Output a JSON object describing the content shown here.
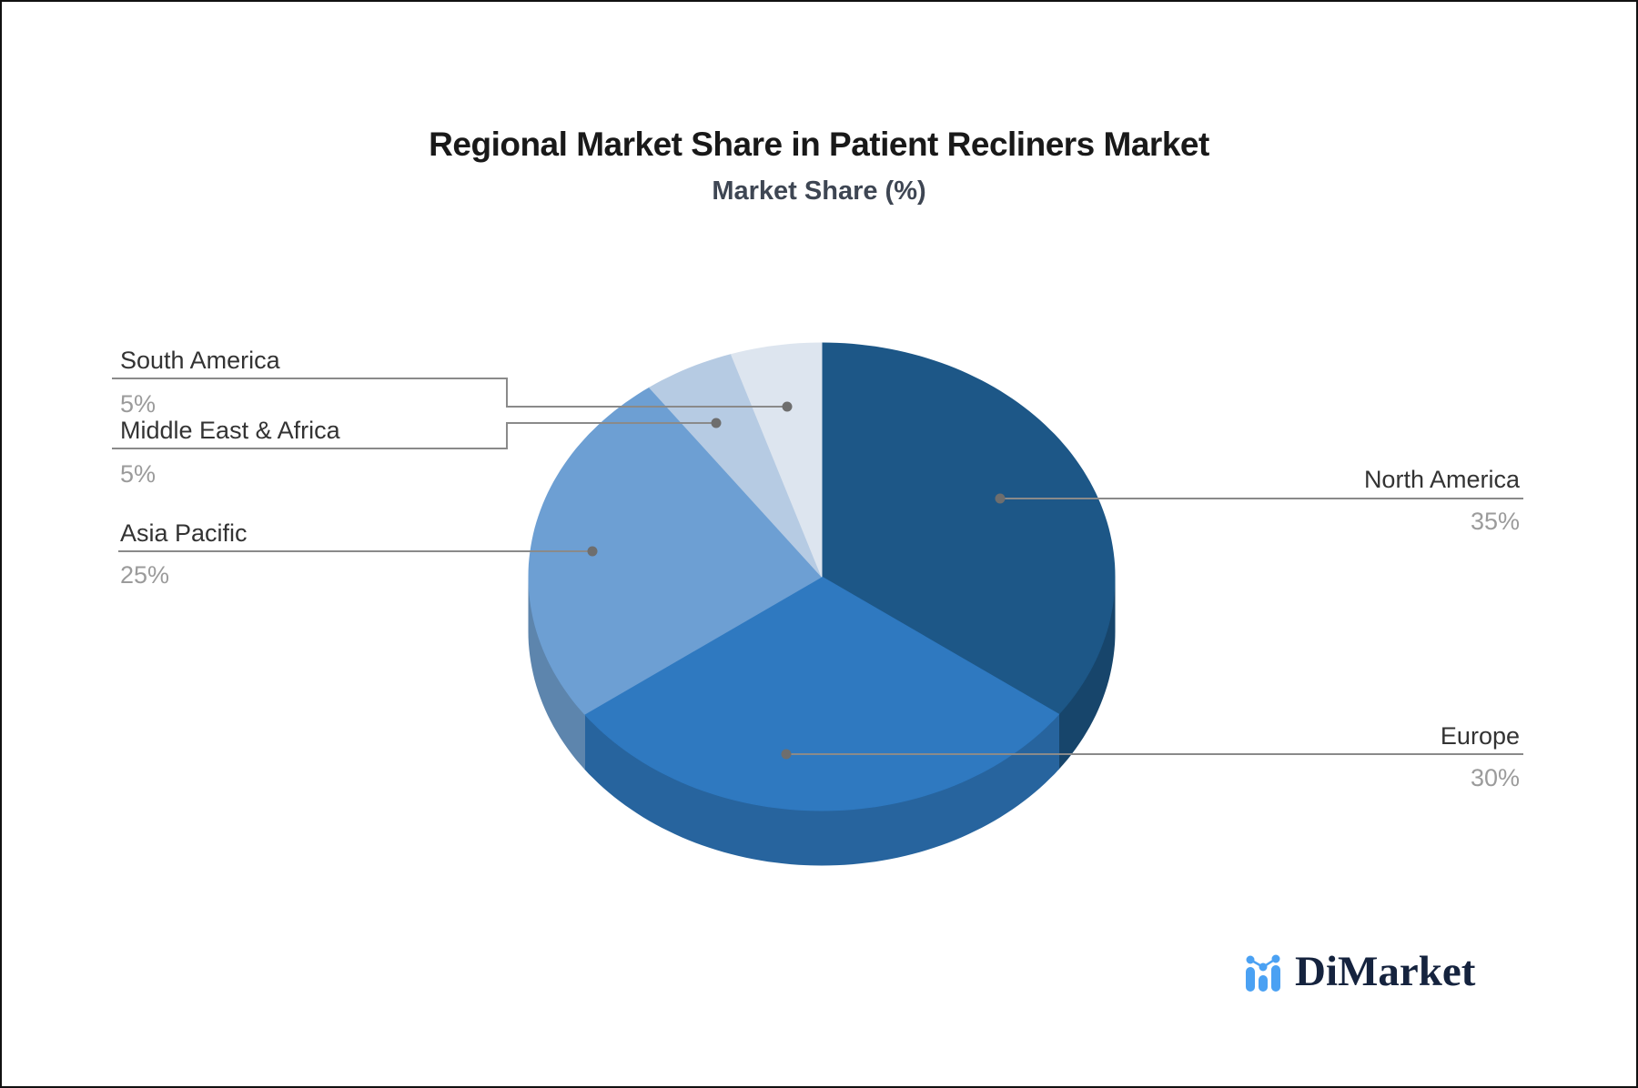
{
  "chart_data": {
    "type": "pie",
    "effect": "3d",
    "title": "Regional Market Share in Patient Recliners Market",
    "subtitle": "Market Share (%)",
    "unit": "%",
    "start_angle_deg": -90,
    "direction": "clockwise",
    "legend_position": "callout-labels",
    "slices": [
      {
        "name": "North America",
        "value": 35,
        "label": "35%",
        "color": "#1d5787",
        "side_color": "#17456b"
      },
      {
        "name": "Europe",
        "value": 30,
        "label": "30%",
        "color": "#2f79c0",
        "side_color": "#27649e"
      },
      {
        "name": "Asia Pacific",
        "value": 25,
        "label": "25%",
        "color": "#6d9fd3",
        "side_color": "#5d85ad"
      },
      {
        "name": "Middle East & Africa",
        "value": 5,
        "label": "5%",
        "color": "#b6cbe3",
        "side_color": "#93a9c2"
      },
      {
        "name": "South America",
        "value": 5,
        "label": "5%",
        "color": "#dde5ef",
        "side_color": "#b8c2d1"
      }
    ],
    "callout_line_color": "#8a8a8a",
    "callout_dot_color": "#6e6e6e"
  },
  "branding": {
    "logo_text": "DiMarket",
    "logo_text_color": "#15233e",
    "logo_mark_color": "#4aa1f3"
  }
}
